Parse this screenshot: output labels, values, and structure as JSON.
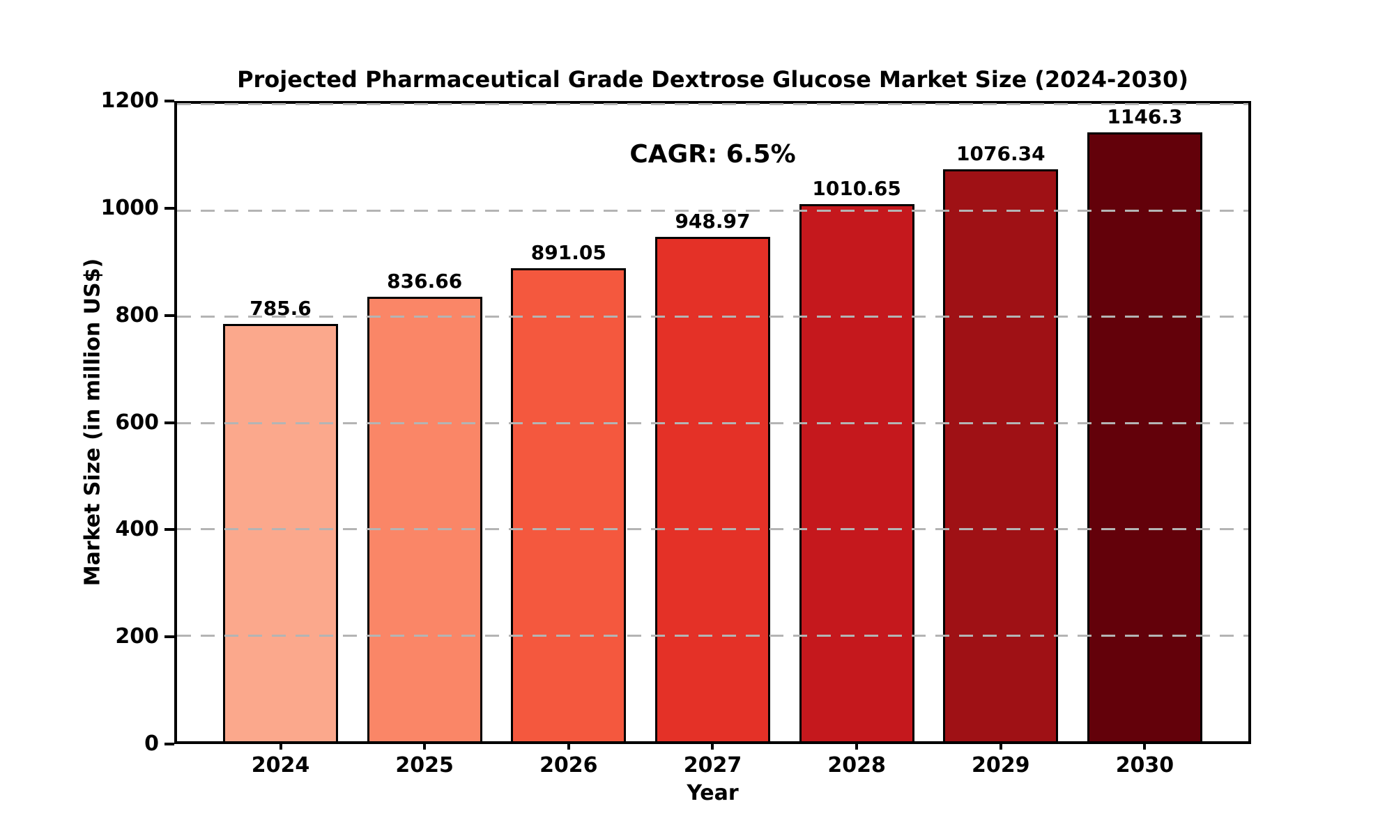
{
  "chart_data": {
    "type": "bar",
    "title": "Projected Pharmaceutical Grade Dextrose Glucose Market Size (2024-2030)",
    "annotation": "CAGR: 6.5%",
    "xlabel": "Year",
    "ylabel": "Market Size (in million US$)",
    "categories": [
      "2024",
      "2025",
      "2026",
      "2027",
      "2028",
      "2029",
      "2030"
    ],
    "values": [
      785.6,
      836.66,
      891.05,
      948.97,
      1010.65,
      1076.34,
      1146.3
    ],
    "value_labels": [
      "785.6",
      "836.66",
      "891.05",
      "948.97",
      "1010.65",
      "1076.34",
      "1146.3"
    ],
    "bar_colors": [
      "#FBA88C",
      "#FA8667",
      "#F4583E",
      "#E43127",
      "#C5181D",
      "#9F1115",
      "#63010A"
    ],
    "bar_edge_color": "#000000",
    "ylim": [
      0,
      1200
    ],
    "yticks": [
      0,
      200,
      400,
      600,
      800,
      1000,
      1200
    ],
    "grid": "horizontal-dashed",
    "grid_color": "#b4b4b4",
    "background_color": "#ffffff",
    "text_color": "#000000",
    "legend": "none"
  }
}
